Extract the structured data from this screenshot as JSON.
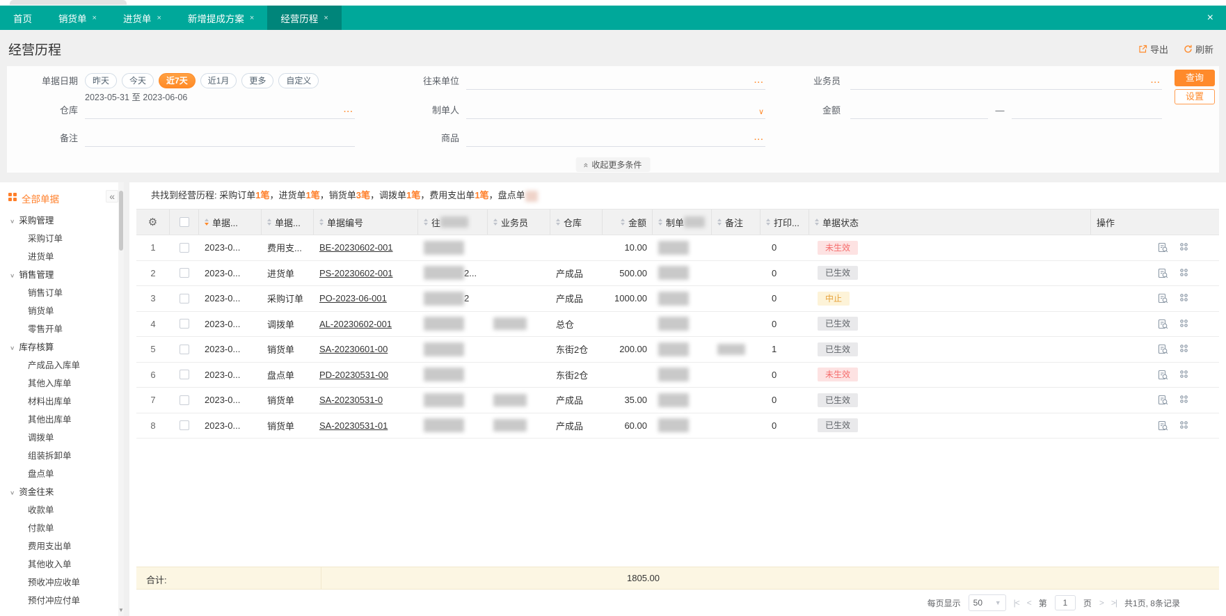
{
  "window": {
    "close": "×"
  },
  "tabbar": {
    "tabs": [
      {
        "label": "首页",
        "closable": false,
        "active": false
      },
      {
        "label": "销货单",
        "closable": true,
        "active": false
      },
      {
        "label": "进货单",
        "closable": true,
        "active": false
      },
      {
        "label": "新增提成方案",
        "closable": true,
        "active": false
      },
      {
        "label": "经营历程",
        "closable": true,
        "active": true
      }
    ]
  },
  "header": {
    "title": "经营历程",
    "export_label": "导出",
    "refresh_label": "刷新"
  },
  "filters": {
    "date_label": "单据日期",
    "date_options": [
      "昨天",
      "今天",
      "近7天",
      "近1月",
      "更多",
      "自定义"
    ],
    "date_selected": "近7天",
    "date_range": "2023-05-31 至 2023-06-06",
    "partner_label": "往来单位",
    "salesman_label": "业务员",
    "warehouse_label": "仓库",
    "maker_label": "制单人",
    "amount_label": "金额",
    "amount_separator": "—",
    "note_label": "备注",
    "product_label": "商品",
    "query_label": "查询",
    "settings_label": "设置",
    "collapse_label": "收起更多条件"
  },
  "sidebar": {
    "title": "全部单据",
    "groups": [
      {
        "label": "采购管理",
        "items": [
          "采购订单",
          "进货单"
        ]
      },
      {
        "label": "销售管理",
        "items": [
          "销售订单",
          "销货单",
          "零售开单"
        ]
      },
      {
        "label": "库存核算",
        "items": [
          "产成品入库单",
          "其他入库单",
          "材料出库单",
          "其他出库单",
          "调拨单",
          "组装拆卸单",
          "盘点单"
        ]
      },
      {
        "label": "资金往来",
        "items": [
          "收款单",
          "付款单",
          "费用支出单",
          "其他收入单",
          "预收冲应收单",
          "预付冲应付单"
        ]
      }
    ]
  },
  "summary": {
    "prefix": "共找到经营历程: ",
    "separator": "，",
    "items": [
      {
        "name": "采购订单",
        "count": "1笔",
        "redacted": false
      },
      {
        "name": "进货单",
        "count": "1笔",
        "redacted": false
      },
      {
        "name": "销货单",
        "count": "3笔",
        "redacted": false
      },
      {
        "name": "调拨单",
        "count": "1笔",
        "redacted": false
      },
      {
        "name": "费用支出单",
        "count": "1笔",
        "redacted": false
      },
      {
        "name": "盘点单",
        "count": "",
        "redacted": true
      }
    ]
  },
  "table": {
    "headers": {
      "date": "单据...",
      "type": "单据...",
      "doc_no": "单据编号",
      "partner": "往",
      "salesman": "业务员",
      "warehouse": "仓库",
      "amount": "金额",
      "maker": "制单",
      "note": "备注",
      "print": "打印...",
      "status": "单据状态",
      "ops": "操作"
    },
    "rows": [
      {
        "index": "1",
        "date": "2023-0...",
        "type": "费用支...",
        "doc_no": "BE-20230602-001",
        "partner_redacted": true,
        "partner_tail": "",
        "salesman": "",
        "salesman_redacted": false,
        "warehouse": "",
        "amount": "10.00",
        "maker_redacted": true,
        "note": "",
        "note_redacted": false,
        "print": "0",
        "status": "未生效",
        "status_kind": "red"
      },
      {
        "index": "2",
        "date": "2023-0...",
        "type": "进货单",
        "doc_no": "PS-20230602-001",
        "partner_redacted": true,
        "partner_tail": "2...",
        "salesman": "",
        "salesman_redacted": false,
        "warehouse": "产成品",
        "amount": "500.00",
        "maker_redacted": true,
        "note": "",
        "note_redacted": false,
        "print": "0",
        "status": "已生效",
        "status_kind": "gray"
      },
      {
        "index": "3",
        "date": "2023-0...",
        "type": "采购订单",
        "doc_no": "PO-2023-06-001",
        "partner_redacted": true,
        "partner_tail": "2",
        "salesman": "",
        "salesman_redacted": false,
        "warehouse": "产成品",
        "amount": "1000.00",
        "maker_redacted": true,
        "note": "",
        "note_redacted": false,
        "print": "0",
        "status": "中止",
        "status_kind": "yellow"
      },
      {
        "index": "4",
        "date": "2023-0...",
        "type": "调拨单",
        "doc_no": "AL-20230602-001",
        "partner_redacted": true,
        "partner_tail": "",
        "salesman": "",
        "salesman_redacted": true,
        "warehouse": "总仓",
        "amount": "",
        "maker_redacted": true,
        "note": "",
        "note_redacted": false,
        "print": "0",
        "status": "已生效",
        "status_kind": "gray"
      },
      {
        "index": "5",
        "date": "2023-0...",
        "type": "销货单",
        "doc_no": "SA-20230601-00",
        "partner_redacted": true,
        "partner_tail": "",
        "salesman": "",
        "salesman_redacted": false,
        "warehouse": "东街2仓",
        "amount": "200.00",
        "maker_redacted": true,
        "note": "",
        "note_redacted": true,
        "print": "1",
        "status": "已生效",
        "status_kind": "gray"
      },
      {
        "index": "6",
        "date": "2023-0...",
        "type": "盘点单",
        "doc_no": "PD-20230531-00",
        "partner_redacted": true,
        "partner_tail": "",
        "salesman": "",
        "salesman_redacted": false,
        "warehouse": "东街2仓",
        "amount": "",
        "maker_redacted": true,
        "note": "",
        "note_redacted": false,
        "print": "0",
        "status": "未生效",
        "status_kind": "red"
      },
      {
        "index": "7",
        "date": "2023-0...",
        "type": "销货单",
        "doc_no": "SA-20230531-0",
        "partner_redacted": true,
        "partner_tail": "",
        "salesman": "",
        "salesman_redacted": true,
        "warehouse": "产成品",
        "amount": "35.00",
        "maker_redacted": true,
        "note": "",
        "note_redacted": false,
        "print": "0",
        "status": "已生效",
        "status_kind": "gray"
      },
      {
        "index": "8",
        "date": "2023-0...",
        "type": "销货单",
        "doc_no": "SA-20230531-01",
        "partner_redacted": true,
        "partner_tail": "",
        "salesman": "",
        "salesman_redacted": true,
        "warehouse": "产成品",
        "amount": "60.00",
        "maker_redacted": true,
        "note": "",
        "note_redacted": false,
        "print": "0",
        "status": "已生效",
        "status_kind": "gray"
      }
    ],
    "total_label": "合计:",
    "total_amount": "1805.00"
  },
  "pagination": {
    "per_page_label": "每页显示",
    "per_page": "50",
    "first": "|<",
    "prev": "<",
    "page_prefix": "第",
    "page_value": "1",
    "page_suffix": "页",
    "next": ">",
    "last": ">|",
    "total_info": "共1页, 8条记录"
  },
  "colors": {
    "teal": "#00a89a",
    "teal_active": "#00857a",
    "accent_orange": "#ff8a2b",
    "status_red_bg": "#fde2e2",
    "status_red_text": "#f56c6c",
    "status_gray_bg": "#e9e9eb",
    "status_gray_text": "#5f6368",
    "status_yellow_bg": "#fdf3d8",
    "status_yellow_text": "#e6a23c"
  }
}
